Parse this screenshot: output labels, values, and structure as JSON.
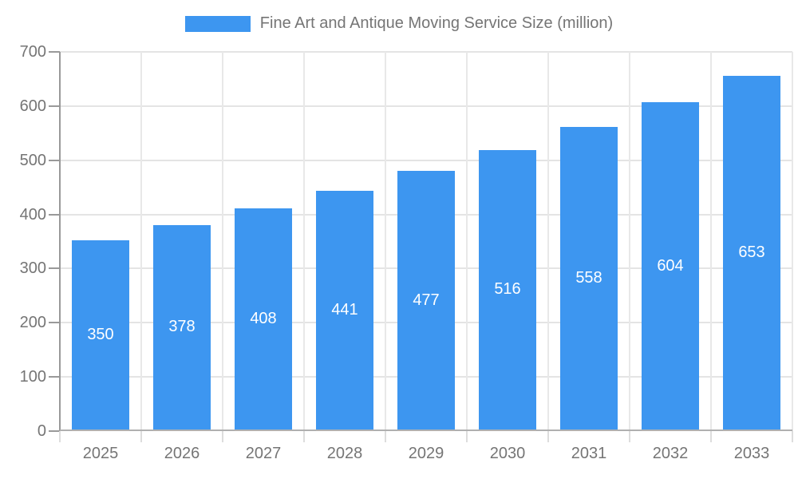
{
  "legend": {
    "label": "Fine Art and Antique Moving Service Size (million)"
  },
  "colors": {
    "bar": "#3D96F0",
    "bar_label": "#ffffff",
    "grid": "#e4e4e4",
    "y_axis": "#999999",
    "x_axis": "#b0b0b0",
    "x_tick": "#dddddd",
    "text": "#757575",
    "background": "#ffffff"
  },
  "chart_data": {
    "type": "bar",
    "title": "Fine Art and Antique Moving Service Size (million)",
    "categories": [
      "2025",
      "2026",
      "2027",
      "2028",
      "2029",
      "2030",
      "2031",
      "2032",
      "2033"
    ],
    "values": [
      350,
      378,
      408,
      441,
      477,
      516,
      558,
      604,
      653
    ],
    "series_name": "Fine Art and Antique Moving Service Size (million)",
    "xlabel": "",
    "ylabel": "",
    "ylim": [
      0,
      700
    ],
    "y_ticks": [
      0,
      100,
      200,
      300,
      400,
      500,
      600,
      700
    ],
    "grid": true,
    "legend_position": "top",
    "bar_label_position": "inside-center"
  }
}
